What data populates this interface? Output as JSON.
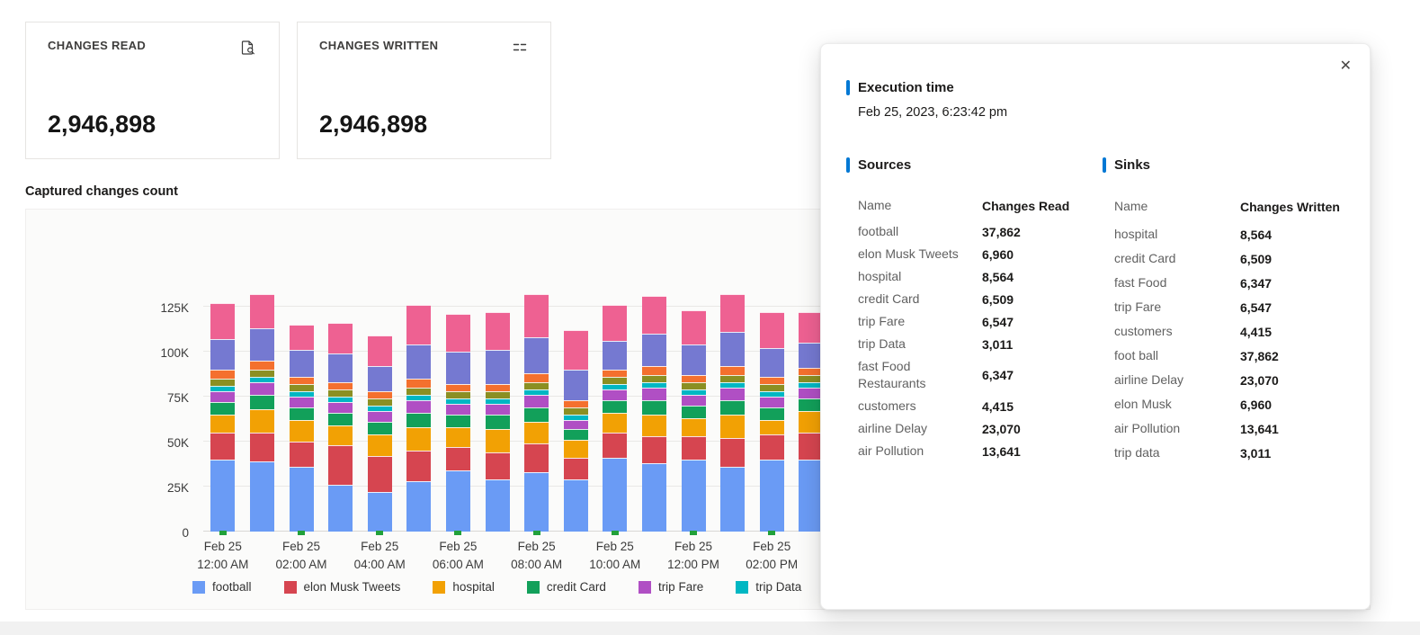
{
  "colors": {
    "accent": "#0078d4"
  },
  "cards": [
    {
      "title": "CHANGES READ",
      "value": "2,946,898",
      "icon": "document-search-icon"
    },
    {
      "title": "CHANGES WRITTEN",
      "value": "2,946,898",
      "icon": "list-icon"
    }
  ],
  "section_title": "Captured changes count",
  "popup": {
    "close_icon": "✕",
    "execution_time": {
      "label": "Execution time",
      "value": "Feb 25, 2023, 6:23:42 pm"
    },
    "sources": {
      "label": "Sources",
      "columns": [
        "Name",
        "Changes Read"
      ],
      "rows": [
        [
          "football",
          "37,862"
        ],
        [
          "elon Musk Tweets",
          "6,960"
        ],
        [
          "hospital",
          "8,564"
        ],
        [
          "credit Card",
          "6,509"
        ],
        [
          "trip Fare",
          "6,547"
        ],
        [
          "trip Data",
          "3,011"
        ],
        [
          "fast Food Restaurants",
          "6,347"
        ],
        [
          "customers",
          "4,415"
        ],
        [
          "airline Delay",
          "23,070"
        ],
        [
          "air Pollution",
          "13,641"
        ]
      ]
    },
    "sinks": {
      "label": "Sinks",
      "columns": [
        "Name",
        "Changes Written"
      ],
      "rows": [
        [
          "hospital",
          "8,564"
        ],
        [
          "credit Card",
          "6,509"
        ],
        [
          "fast Food",
          "6,347"
        ],
        [
          "trip Fare",
          "6,547"
        ],
        [
          "customers",
          "4,415"
        ],
        [
          "foot ball",
          "37,862"
        ],
        [
          "airline Delay",
          "23,070"
        ],
        [
          "elon Musk",
          "6,960"
        ],
        [
          "air Pollution",
          "13,641"
        ],
        [
          "trip data",
          "3,011"
        ]
      ]
    }
  },
  "chart_data": {
    "type": "bar",
    "stacked": true,
    "title": "Captured changes count",
    "xlabel": "",
    "ylabel": "",
    "ylim": [
      0,
      135000
    ],
    "grid": true,
    "legend_position": "bottom",
    "marker_color": "#22a13a",
    "bars_per_category": 2,
    "yticks": [
      {
        "label": "0",
        "value": 0
      },
      {
        "label": "25K",
        "value": 25000
      },
      {
        "label": "50K",
        "value": 50000
      },
      {
        "label": "75K",
        "value": 75000
      },
      {
        "label": "100K",
        "value": 100000
      },
      {
        "label": "125K",
        "value": 125000
      }
    ],
    "categories": [
      [
        "Feb 25",
        "12:00 AM"
      ],
      [
        "Feb 25",
        "02:00 AM"
      ],
      [
        "Feb 25",
        "04:00 AM"
      ],
      [
        "Feb 25",
        "06:00 AM"
      ],
      [
        "Feb 25",
        "08:00 AM"
      ],
      [
        "Feb 25",
        "10:00 AM"
      ],
      [
        "Feb 25",
        "12:00 PM"
      ],
      [
        "Feb 25",
        "02:00 PM"
      ]
    ],
    "series": [
      {
        "name": "football",
        "color": "#6a9bf5",
        "values": [
          40000,
          39000,
          36000,
          26000,
          22000,
          28000,
          34000,
          29000,
          33000,
          29000,
          41000,
          38000,
          40000,
          36000,
          40000,
          40000
        ]
      },
      {
        "name": "elon Musk Tweets",
        "color": "#d64550",
        "values": [
          15000,
          16000,
          14000,
          22000,
          20000,
          17000,
          13000,
          15000,
          16000,
          12000,
          14000,
          15000,
          13000,
          16000,
          14000,
          15000
        ]
      },
      {
        "name": "hospital",
        "color": "#f2a104",
        "values": [
          10000,
          13000,
          12000,
          11000,
          12000,
          13000,
          11000,
          13000,
          12000,
          10000,
          11000,
          12000,
          10000,
          13000,
          8000,
          12000
        ]
      },
      {
        "name": "credit Card",
        "color": "#12a05a",
        "values": [
          7000,
          8000,
          7000,
          7000,
          7000,
          8000,
          7000,
          8000,
          8000,
          6000,
          7000,
          8000,
          7000,
          8000,
          7000,
          7000
        ]
      },
      {
        "name": "trip Fare",
        "color": "#b04fc4",
        "values": [
          6000,
          7000,
          6000,
          6000,
          6000,
          7000,
          6000,
          6000,
          7000,
          5000,
          6000,
          7000,
          6000,
          7000,
          6000,
          6000
        ]
      },
      {
        "name": "trip Data",
        "color": "#00b7c3",
        "values": [
          3000,
          3000,
          3000,
          3000,
          3000,
          3000,
          3000,
          3000,
          3000,
          3000,
          3000,
          3000,
          3000,
          3000,
          3000,
          3000
        ]
      },
      {
        "name": "fast Food Restaurants",
        "color": "#8b8f23",
        "values": [
          4000,
          4000,
          4000,
          4000,
          4000,
          4000,
          4000,
          4000,
          4000,
          4000,
          4000,
          4000,
          4000,
          4000,
          4000,
          4000
        ]
      },
      {
        "name": "customers",
        "color": "#f4702e",
        "values": [
          5000,
          5000,
          4000,
          4000,
          4000,
          5000,
          4000,
          4000,
          5000,
          4000,
          4000,
          5000,
          4000,
          5000,
          4000,
          4000
        ]
      },
      {
        "name": "airline Delay",
        "color": "#7579d1",
        "values": [
          17000,
          18000,
          15000,
          16000,
          14000,
          19000,
          18000,
          19000,
          20000,
          17000,
          16000,
          18000,
          17000,
          19000,
          16000,
          14000
        ]
      },
      {
        "name": "air Pollution",
        "color": "#ee6192",
        "values": [
          20000,
          19000,
          14000,
          17000,
          17000,
          22000,
          21000,
          21000,
          24000,
          22000,
          20000,
          21000,
          19000,
          21000,
          20000,
          17000
        ]
      }
    ]
  }
}
